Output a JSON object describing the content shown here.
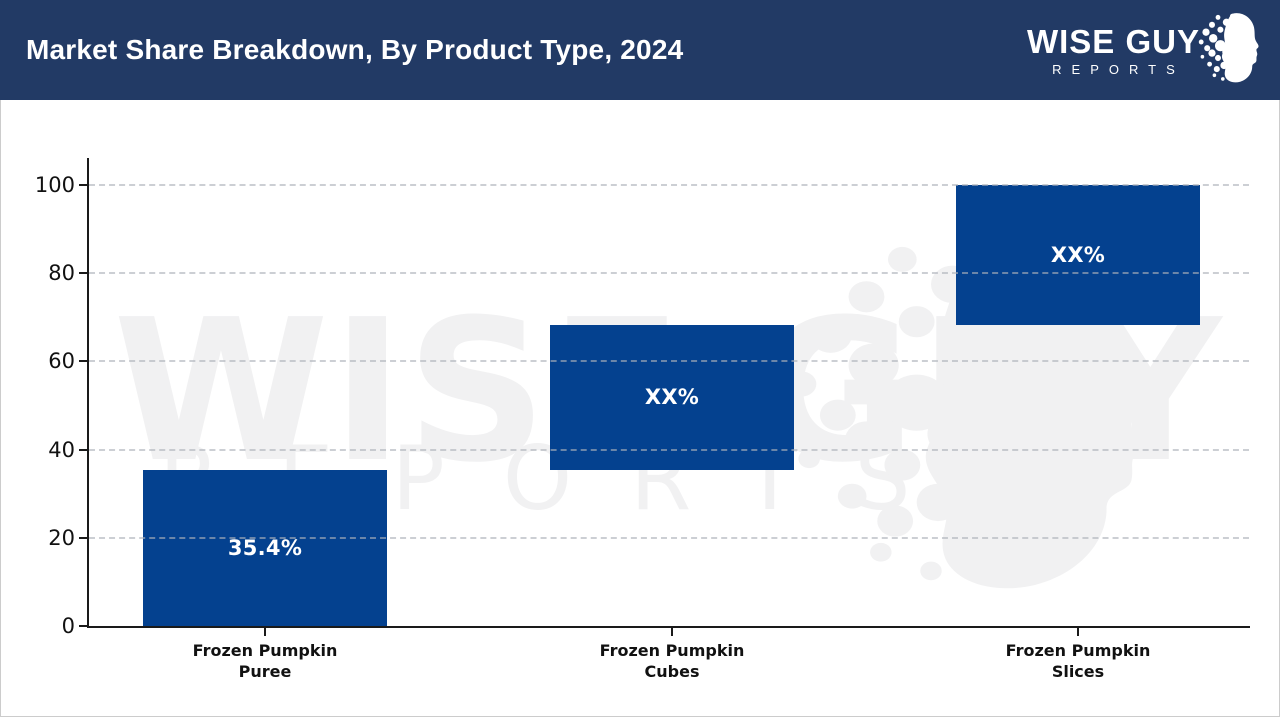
{
  "header": {
    "title": "Market Share Breakdown, By Product Type, 2024",
    "background_color": "#223A65",
    "logo": {
      "primary": "WISE GUY",
      "secondary": "REPORTS",
      "face_icon": "dotted-face-profile"
    }
  },
  "watermark": {
    "primary": "WISE GUY",
    "secondary": "REPORTS",
    "face_icon": "dotted-face-profile",
    "color": "#f1f1f2"
  },
  "chart_data": {
    "type": "bar",
    "subtype": "waterfall-market-share",
    "title": "Market Share Breakdown, By Product Type, 2024",
    "xlabel": "",
    "ylabel": "",
    "ylim": [
      0,
      100
    ],
    "yticks": [
      0,
      20,
      40,
      60,
      80,
      100
    ],
    "grid": "horizontal-dashed",
    "legend": "none",
    "bar_color": "#04418F",
    "categories": [
      {
        "line1": "Frozen Pumpkin",
        "line2": "Puree"
      },
      {
        "line1": "Frozen Pumpkin",
        "line2": "Cubes"
      },
      {
        "line1": "Frozen Pumpkin",
        "line2": "Slices"
      }
    ],
    "segments": [
      {
        "category": "Frozen Pumpkin Puree",
        "start": 0,
        "end": 35.4,
        "label": "35.4%"
      },
      {
        "category": "Frozen Pumpkin Cubes",
        "start": 35.4,
        "end": 68.3,
        "label": "XX%"
      },
      {
        "category": "Frozen Pumpkin Slices",
        "start": 68.3,
        "end": 100,
        "label": "XX%"
      }
    ]
  }
}
